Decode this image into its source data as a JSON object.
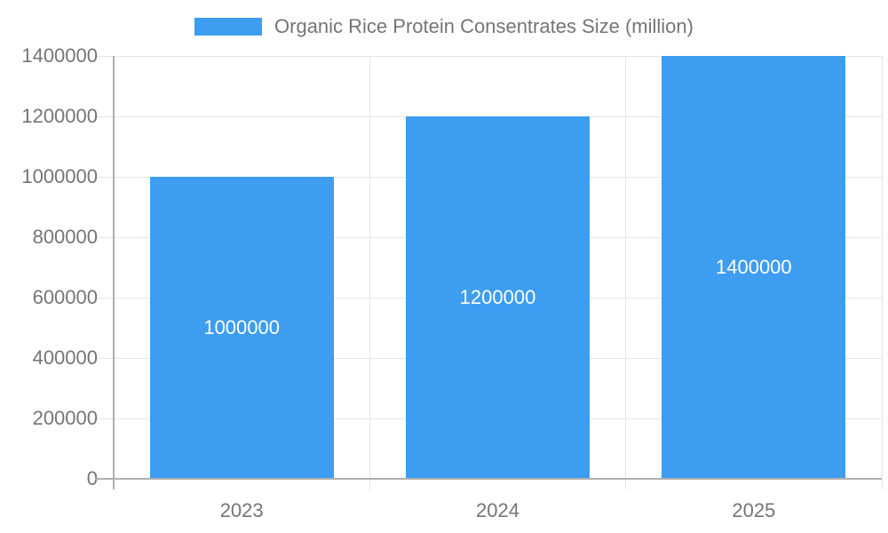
{
  "legend": {
    "label": "Organic Rice Protein Consentrates Size (million)"
  },
  "chart_data": {
    "type": "bar",
    "title": "",
    "series_name": "Organic Rice Protein Consentrates Size (million)",
    "categories": [
      "2023",
      "2024",
      "2025"
    ],
    "values": [
      1000000,
      1200000,
      1400000
    ],
    "value_labels": [
      "1000000",
      "1200000",
      "1400000"
    ],
    "ytick_values": [
      0,
      200000,
      400000,
      600000,
      800000,
      1000000,
      1200000,
      1400000
    ],
    "ytick_labels": [
      "0",
      "200000",
      "400000",
      "600000",
      "800000",
      "1000000",
      "1200000",
      "1400000"
    ],
    "ylim": [
      0,
      1400000
    ],
    "grid": true,
    "legend_position": "top",
    "colors": {
      "bar": "#3d9df0",
      "value_label": "#ffffff",
      "axis_text": "#757575",
      "grid_line": "#e6e6e6",
      "axis_line": "#b0b0b0",
      "background": "#ffffff"
    }
  }
}
